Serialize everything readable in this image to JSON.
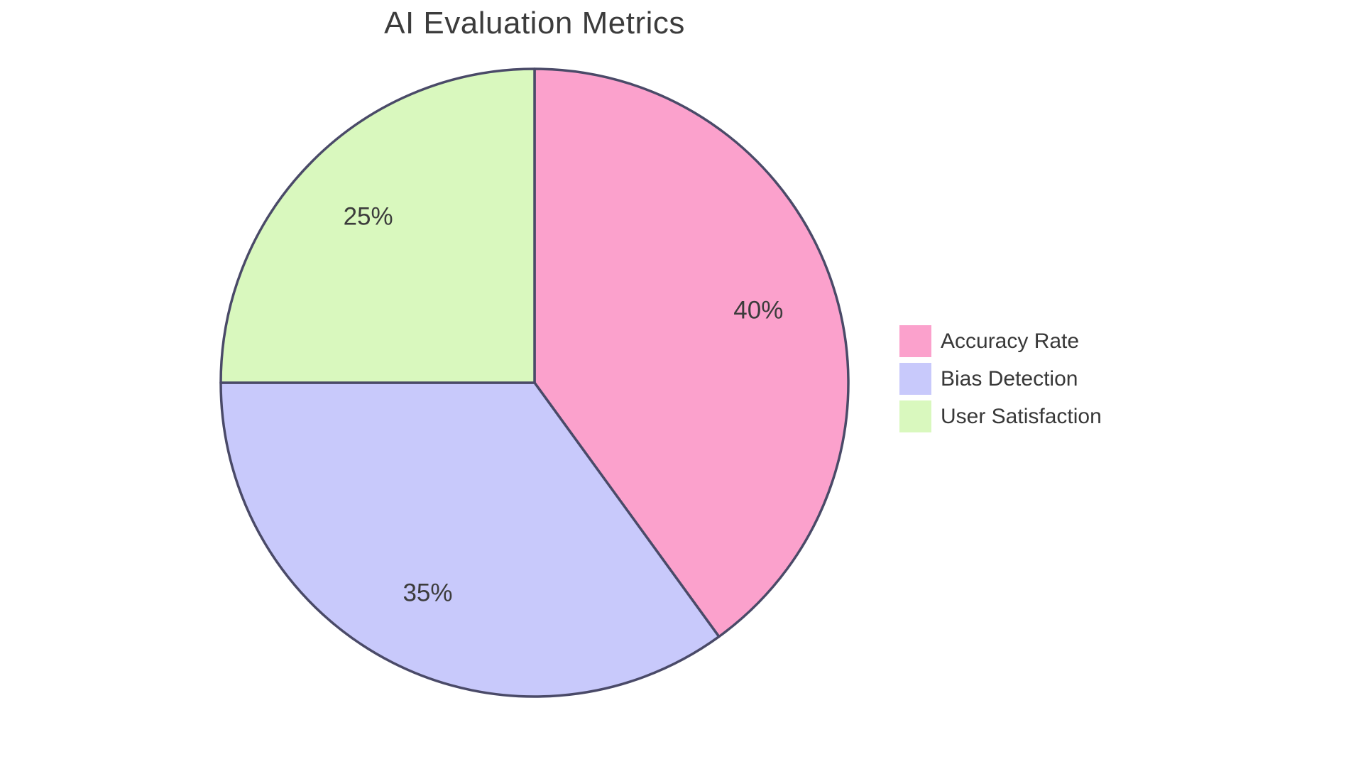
{
  "page": {
    "background_color": "#ffffff"
  },
  "chart_data": {
    "type": "pie",
    "title": "AI Evaluation Metrics",
    "categories": [
      "Accuracy Rate",
      "Bias Detection",
      "User Satisfaction"
    ],
    "values": [
      40,
      35,
      25
    ],
    "percent_labels": [
      "40%",
      "35%",
      "25%"
    ],
    "slice_colors": [
      "#fba1cc",
      "#c8c9fb",
      "#d9f8be"
    ],
    "stroke_color": "#4a4a68",
    "label_text_color": "#3c3c3c",
    "title_text_color": "#3c3c3c",
    "legend_text_color": "#383838",
    "legend_position": "right",
    "start_angle": "12 o'clock",
    "direction": "clockwise",
    "grid": "off"
  }
}
